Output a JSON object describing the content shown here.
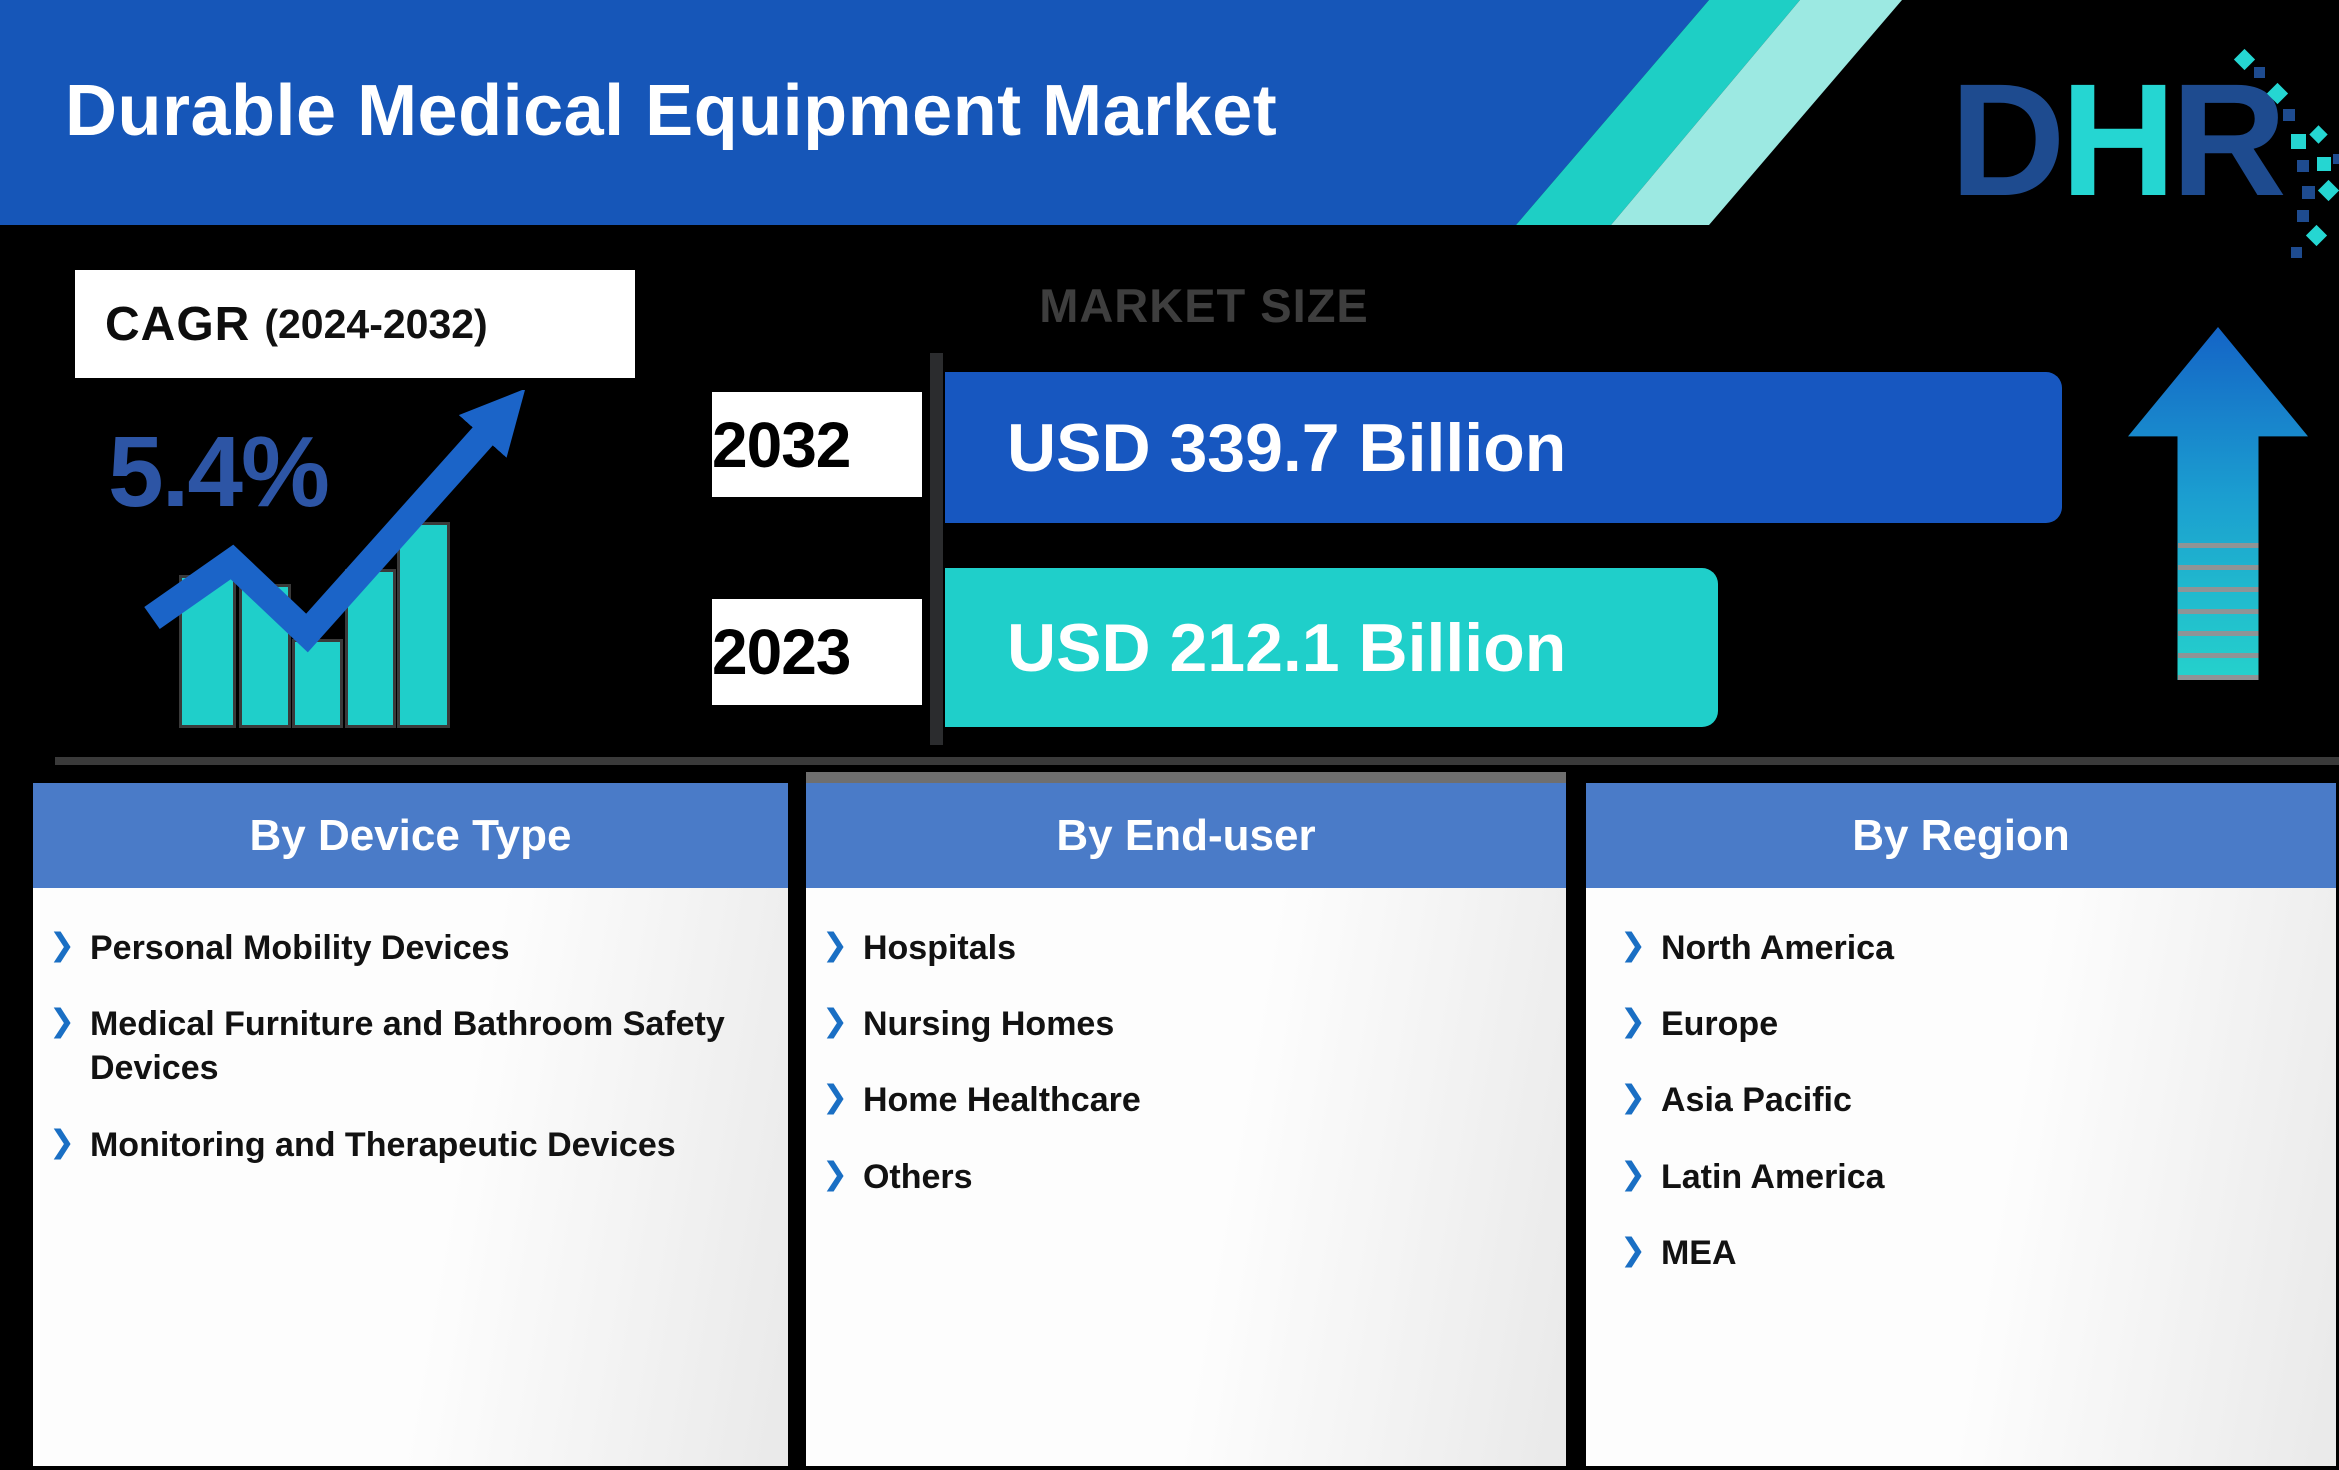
{
  "header": {
    "title": "Durable Medical Equipment Market",
    "logo": {
      "letters": [
        "D",
        "H",
        "R"
      ]
    }
  },
  "cagr": {
    "label": "CAGR",
    "period": "(2024-2032)",
    "value": "5.4%"
  },
  "market_size": {
    "heading": "MARKET SIZE",
    "rows": [
      {
        "year": "2032",
        "value": "USD 339.7 Billion"
      },
      {
        "year": "2023",
        "value": "USD 212.1 Billion"
      }
    ]
  },
  "segments": [
    {
      "title": "By Device Type",
      "items": [
        "Personal Mobility Devices",
        "Medical Furniture and Bathroom Safety Devices",
        "Monitoring and Therapeutic Devices"
      ]
    },
    {
      "title": "By End-user",
      "items": [
        "Hospitals",
        "Nursing Homes",
        "Home Healthcare",
        "Others"
      ]
    },
    {
      "title": "By Region",
      "items": [
        "North America",
        "Europe",
        "Asia Pacific",
        "Latin America",
        "MEA"
      ]
    }
  ],
  "chart_data": {
    "type": "bar",
    "orientation": "horizontal",
    "title": "MARKET SIZE",
    "categories": [
      "2032",
      "2023"
    ],
    "values": [
      339.7,
      212.1
    ],
    "unit": "USD Billion",
    "bar_labels": [
      "USD 339.7 Billion",
      "USD 212.1 Billion"
    ],
    "bar_colors": [
      "#1757c0",
      "#1fcfca"
    ],
    "cagr_pct": 5.4,
    "cagr_period": "2024-2032",
    "grid": false,
    "legend": "none"
  },
  "icons": {
    "chevron_right": "❯"
  },
  "colors": {
    "header_blue": "#1656b8",
    "panel_header_blue": "#4a7bc8",
    "bar_blue": "#1757c0",
    "bar_teal": "#1fcfca",
    "teal_mid_stripe": "#1ecfc5",
    "teal_light_stripe": "#9ce9e2",
    "logo_navy": "#1e4b8f",
    "logo_teal": "#25d6d2",
    "cagr_value_blue": "#2d55a5",
    "zigzag_blue": "#1b64c8",
    "market_size_gray": "#3e3e3e",
    "background": "#000000"
  }
}
